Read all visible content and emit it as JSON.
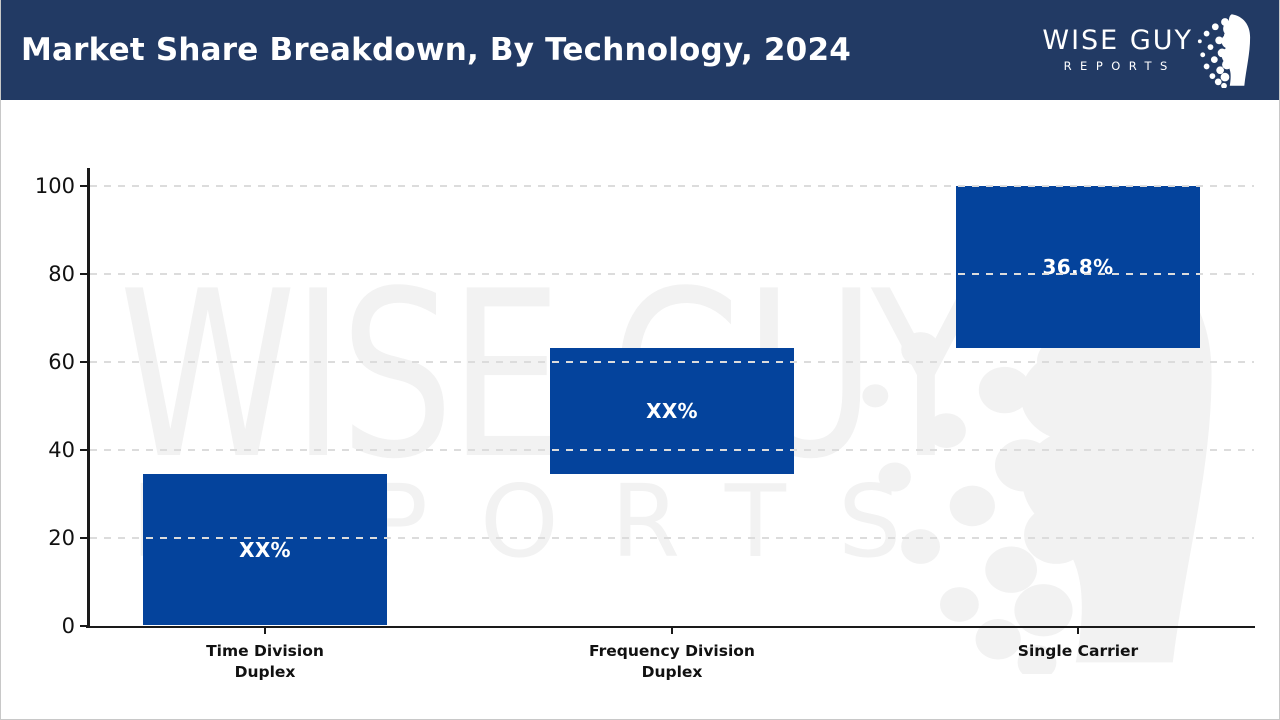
{
  "header": {
    "title": "Market Share Breakdown, By Technology, 2024",
    "logo": {
      "name": "WISE GUY",
      "tagline": "REPORTS",
      "face_icon": "dotted-face-profile"
    }
  },
  "watermark": {
    "name": "WISE GUY",
    "tagline": "REPORTS",
    "face_icon": "dotted-face-profile"
  },
  "colors": {
    "header_bg": "#223A64",
    "bar": "#04439C",
    "bar_label_text": "#FFFFFF",
    "axis_and_text": "#1A1A1A",
    "gridline": "#DCDCDC",
    "watermark": "#F2F2F2",
    "frame_border": "#C8C8C8",
    "background": "#FFFFFF"
  },
  "chart_data": {
    "type": "bar",
    "variant": "waterfall-floating-segments",
    "title": "Market Share Breakdown, By Technology, 2024",
    "categories": [
      [
        "Time Division",
        "Duplex"
      ],
      [
        "Frequency Division",
        "Duplex"
      ],
      [
        "Single Carrier"
      ]
    ],
    "segments": [
      {
        "category": "Time Division Duplex",
        "start": 0,
        "end": 34.4,
        "value": 34.4,
        "label": "XX%"
      },
      {
        "category": "Frequency Division Duplex",
        "start": 34.4,
        "end": 63.2,
        "value": 28.8,
        "label": "XX%"
      },
      {
        "category": "Single Carrier",
        "start": 63.2,
        "end": 100,
        "value": 36.8,
        "label": "36.8%"
      }
    ],
    "xlabel": "",
    "ylabel": "",
    "yticks": [
      0,
      20,
      40,
      60,
      80,
      100
    ],
    "ylim": [
      0,
      100
    ],
    "grid": {
      "horizontal": true,
      "style": "dashed",
      "drawn_over_bars": true
    },
    "legend": null
  }
}
